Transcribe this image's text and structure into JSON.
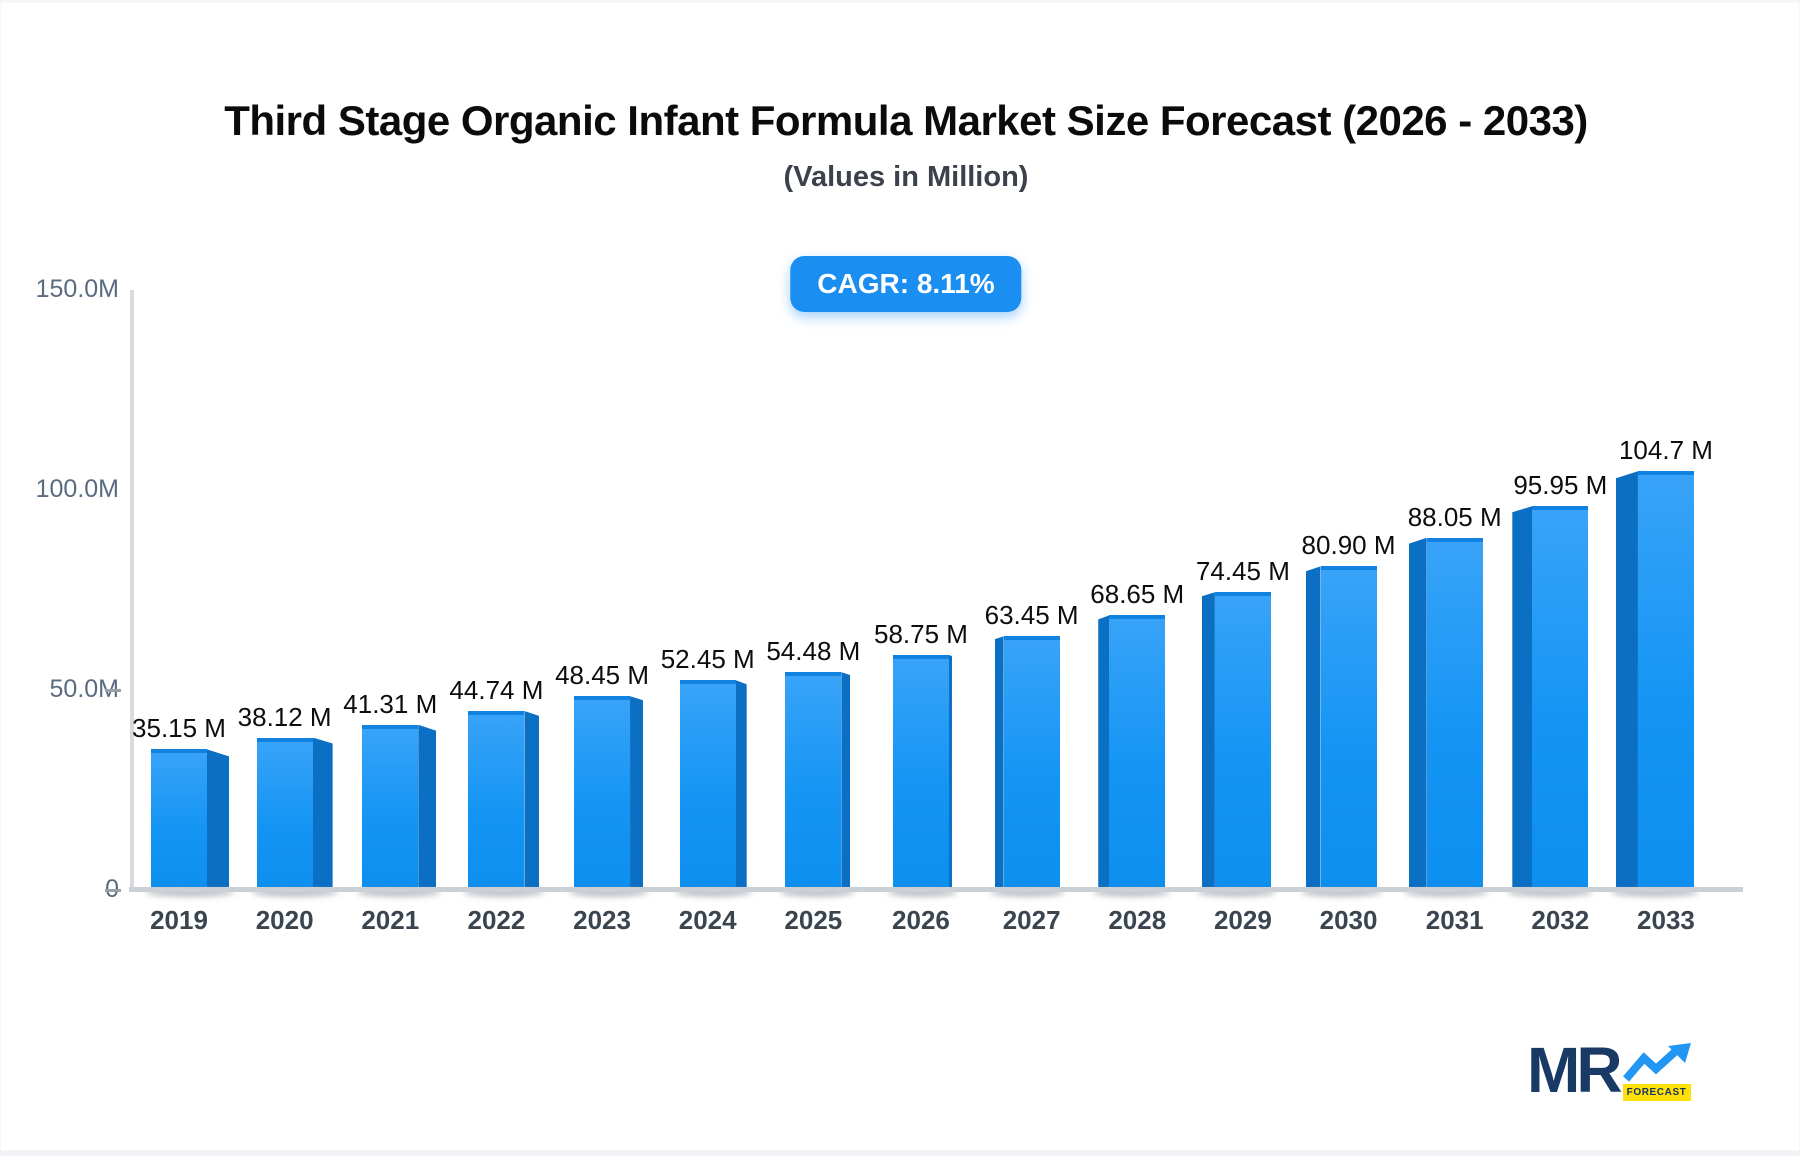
{
  "header": {
    "title": "Third Stage Organic Infant Formula Market Size Forecast (2026 - 2033)",
    "subtitle": "(Values in Million)",
    "cagr_label": "CAGR: 8.11%",
    "cagr_badge_color": "#1b8ef2"
  },
  "chart_data": {
    "type": "bar",
    "title": "Third Stage Organic Infant Formula Market Size Forecast (2026 - 2033)",
    "subtitle": "(Values in Million)",
    "categories": [
      "2019",
      "2020",
      "2021",
      "2022",
      "2023",
      "2024",
      "2025",
      "2026",
      "2027",
      "2028",
      "2029",
      "2030",
      "2031",
      "2032",
      "2033"
    ],
    "values": [
      35.15,
      38.12,
      41.31,
      44.74,
      48.45,
      52.45,
      54.48,
      58.75,
      63.45,
      68.65,
      74.45,
      80.9,
      88.05,
      95.95,
      104.7
    ],
    "value_labels": [
      "35.15 M",
      "38.12 M",
      "41.31 M",
      "44.74 M",
      "48.45 M",
      "52.45 M",
      "54.48 M",
      "58.75 M",
      "63.45 M",
      "68.65 M",
      "74.45 M",
      "80.90 M",
      "88.05 M",
      "95.95 M",
      "104.7 M"
    ],
    "xlabel": "",
    "ylabel": "",
    "ylim": [
      0,
      150
    ],
    "y_ticks": [
      {
        "value": 0,
        "label": "0",
        "tick_mark": true
      },
      {
        "value": 50,
        "label": "50.0M",
        "tick_mark": true
      },
      {
        "value": 100,
        "label": "100.0M",
        "tick_mark": false
      },
      {
        "value": 150,
        "label": "150.0M",
        "tick_mark": false
      }
    ],
    "grid": false,
    "legend": "none",
    "style": {
      "bar_face_top": "#38a3f8",
      "bar_face_bottom": "#0d8ff0",
      "bar_side": "#0b6fc4",
      "bar_top_edge": "#1182e0",
      "effect": "3d-perspective-center"
    }
  },
  "logo": {
    "text": "MR",
    "badge": "FORECAST",
    "text_color": "#1a3a66",
    "badge_bg": "#ffe008",
    "arrow_color": "#2196f3"
  }
}
